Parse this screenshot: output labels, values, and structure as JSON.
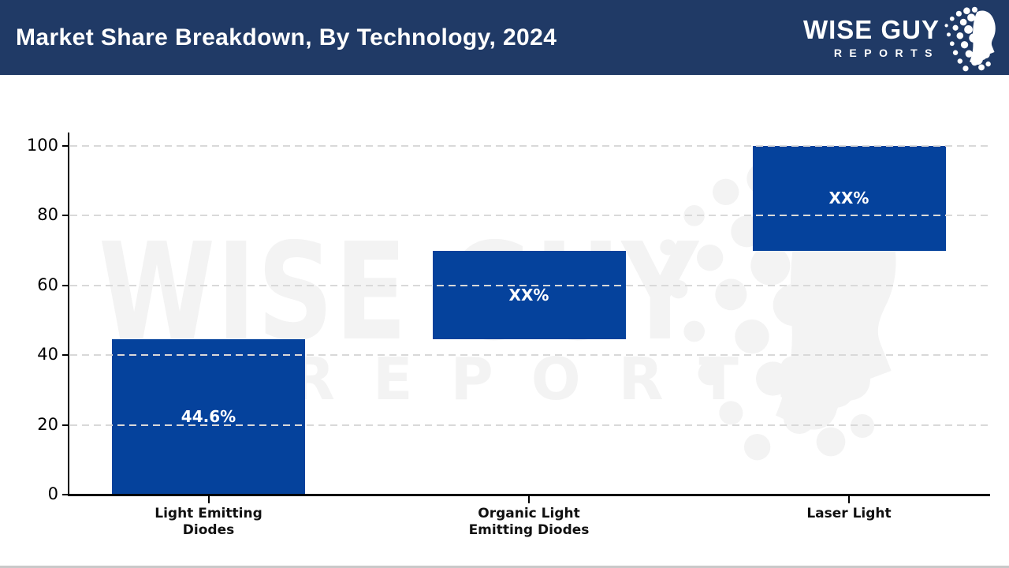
{
  "header": {
    "title": "Market Share Breakdown, By Technology, 2024",
    "logo": {
      "wordmark": "WISE GUY",
      "subtext": "REPORTS"
    }
  },
  "watermark": {
    "wordmark": "WISE GUY",
    "subtext": "REPORTS"
  },
  "theme": {
    "header_bg": "#203a66",
    "bar_color": "#05429c",
    "bar_label_color": "#ffffff",
    "gridline_color": "#d9d9d9",
    "axis_color": "#000000",
    "watermark_color": "#f3f3f3",
    "bottom_rule_color": "#c9c9c9"
  },
  "chart_data": {
    "type": "bar",
    "subtype": "floating-segmented-breakdown",
    "title": "Market Share Breakdown, By Technology, 2024",
    "xlabel": "",
    "ylabel": "",
    "ylim": [
      0,
      104
    ],
    "yticks": [
      "0",
      "20",
      "40",
      "60",
      "80",
      "100"
    ],
    "grid": "dashed horizontal, drawn over bars",
    "legend": "none",
    "categories": [
      {
        "line1": "Light Emitting",
        "line2": "Diodes"
      },
      {
        "line1": "Organic Light",
        "line2": "Emitting Diodes"
      },
      {
        "line1": "Laser Light",
        "line2": ""
      }
    ],
    "segments": [
      {
        "category": "Light Emitting Diodes",
        "base": 0,
        "top": 44.6,
        "size": 44.6,
        "label": "44.6%"
      },
      {
        "category": "Organic Light Emitting Diodes",
        "base": 44.6,
        "top": 70.0,
        "size": 25.4,
        "label": "XX%"
      },
      {
        "category": "Laser Light",
        "base": 70.0,
        "top": 100.0,
        "size": 30.0,
        "label": "XX%"
      }
    ]
  }
}
